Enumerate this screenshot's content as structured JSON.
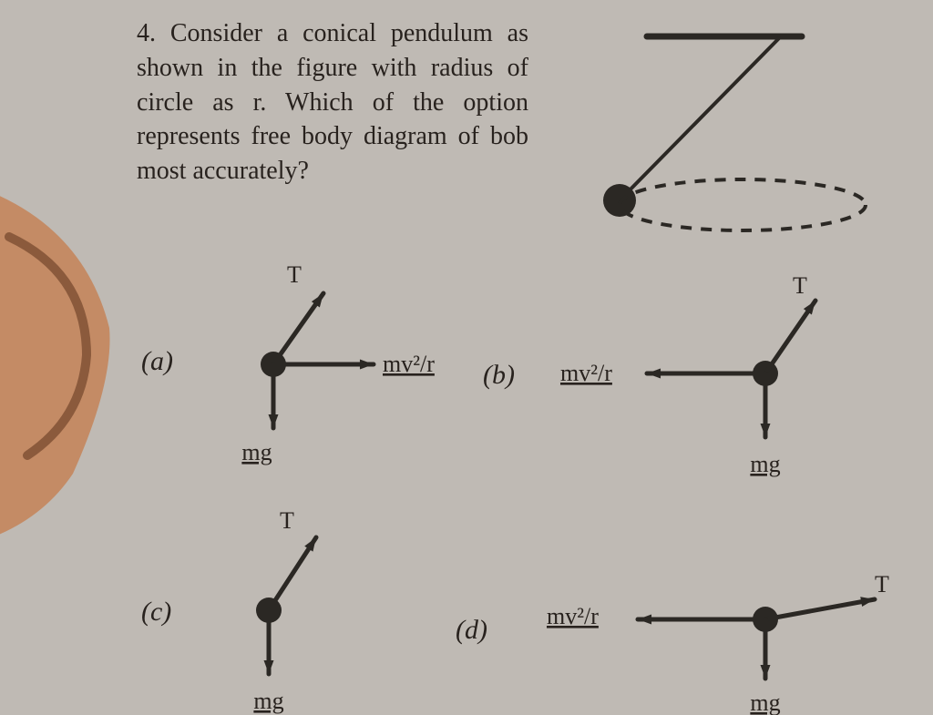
{
  "page": {
    "background_color": "#bfbab4",
    "thumb_color": "#c48b65",
    "thumb_shadow": "#8b5a3c",
    "text_color": "#2d2a28",
    "bold_color": "#28221e",
    "font_size_body": 28,
    "font_size_labels": 26,
    "font_size_option_letter": 30,
    "line_height": 1.35
  },
  "question": {
    "number": "4.",
    "text": "Consider a conical pendulum as shown in the figure with radius of circle as r. Which of the option represents free body diagram of bob most accurately?"
  },
  "labels": {
    "T": "T",
    "mg": "mg",
    "mv2r": "mv²/r"
  },
  "options": {
    "a": "(a)",
    "b": "(b)",
    "c": "(c)",
    "d": "(d)"
  },
  "stroke": {
    "main": "#2b2824",
    "bob_fill": "#2b2824",
    "dash": "6,6"
  }
}
